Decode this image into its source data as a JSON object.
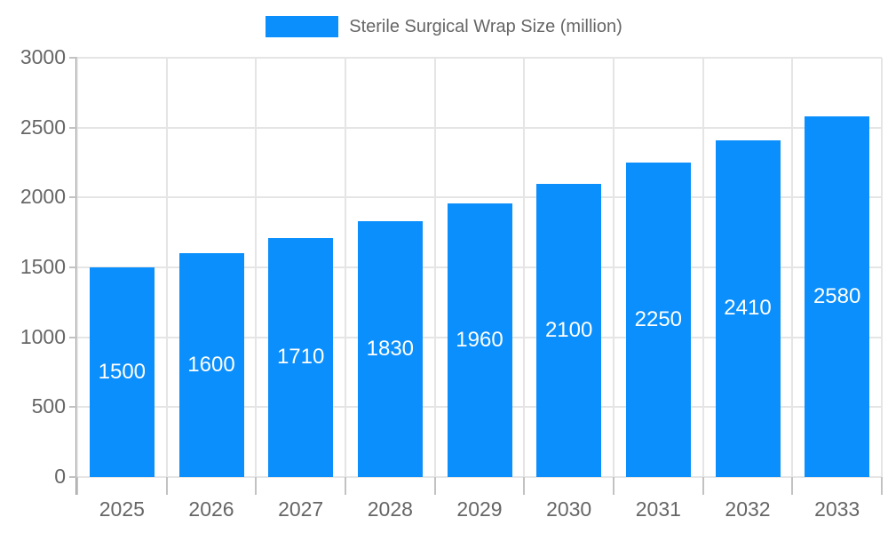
{
  "legend": {
    "label": "Sterile Surgical Wrap Size (million)"
  },
  "chart_data": {
    "type": "bar",
    "title": "",
    "xlabel": "",
    "ylabel": "",
    "categories": [
      "2025",
      "2026",
      "2027",
      "2028",
      "2029",
      "2030",
      "2031",
      "2032",
      "2033"
    ],
    "series": [
      {
        "name": "Sterile Surgical Wrap Size (million)",
        "values": [
          1500,
          1600,
          1710,
          1830,
          1960,
          2100,
          2250,
          2410,
          2580
        ]
      }
    ],
    "value_labels_shown": true,
    "ylim": [
      0,
      3000
    ],
    "yticks": [
      0,
      500,
      1000,
      1500,
      2000,
      2500,
      3000
    ],
    "grid": true,
    "legend_position": "top"
  },
  "colors": {
    "bar": "#0a8ffc",
    "value_label": "#ffffff",
    "grid": "#e5e5e5",
    "axis_line": "#9a9a9a",
    "tick": "#c2c2c2",
    "text": "#666666",
    "background": "#ffffff"
  }
}
